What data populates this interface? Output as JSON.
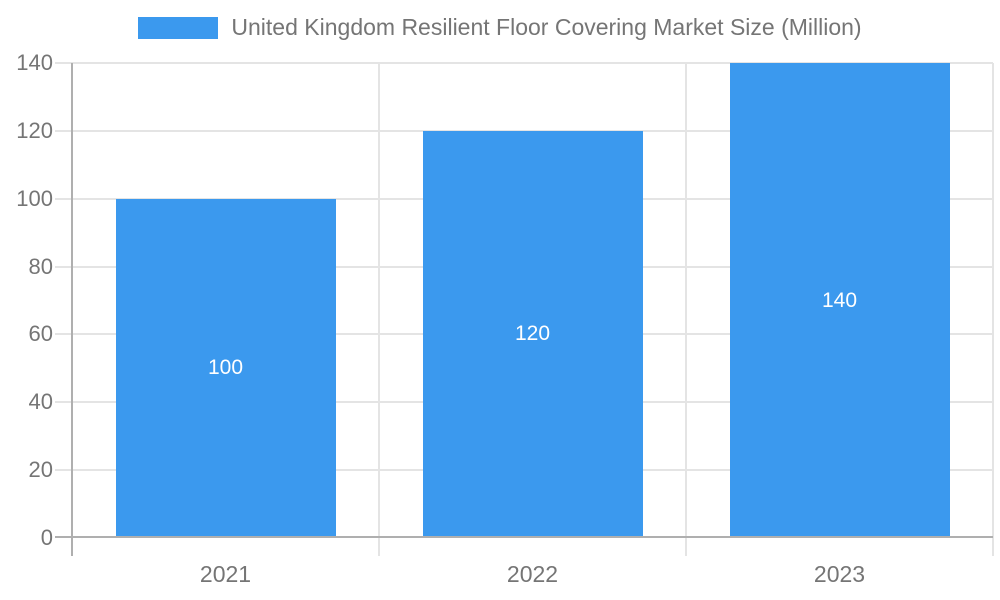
{
  "legend": {
    "label": "United Kingdom Resilient Floor Covering Market Size (Million)"
  },
  "chart_data": {
    "type": "bar",
    "title": "United Kingdom Resilient Floor Covering Market Size (Million)",
    "categories": [
      "2021",
      "2022",
      "2023"
    ],
    "values": [
      100,
      120,
      140
    ],
    "data_labels": [
      "100",
      "120",
      "140"
    ],
    "xlabel": "",
    "ylabel": "",
    "ylim": [
      0,
      140
    ],
    "yticks": [
      0,
      20,
      40,
      60,
      80,
      100,
      120,
      140
    ],
    "grid": true,
    "legend_position": "top-center",
    "colors": {
      "bar": "#3B99EE",
      "bar_label_text": "#FFFFFF",
      "axis_line": "#AFAFAF",
      "gridline": "#E4E4E4",
      "tick_text": "#757575",
      "legend_text": "#757575",
      "background": "#FFFFFF"
    }
  }
}
